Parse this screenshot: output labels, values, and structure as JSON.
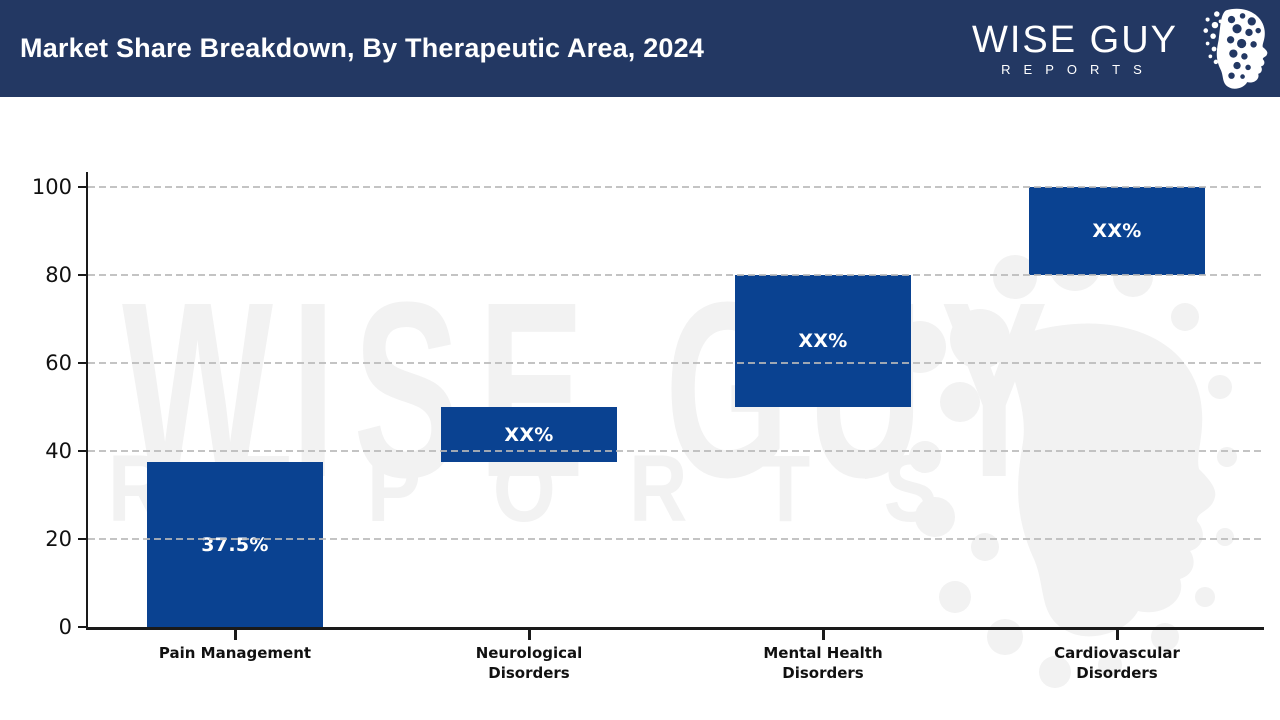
{
  "header": {
    "title": "Market Share Breakdown, By Therapeutic Area, 2024",
    "background_color": "#233863",
    "logo": {
      "line1": "WISE GUY",
      "line2": "REPORTS"
    }
  },
  "watermark": {
    "line1": "WISE GUY",
    "line2": "R E P O R T S"
  },
  "chart_data": {
    "type": "bar",
    "subtype": "floating-waterfall",
    "title": "Market Share Breakdown, By Therapeutic Area, 2024",
    "categories": [
      "Pain Management",
      "Neurological\nDisorders",
      "Mental Health\nDisorders",
      "Cardiovascular\nDisorders"
    ],
    "segments": [
      {
        "category": "Pain Management",
        "start": 0,
        "end": 37.5,
        "label": "37.5%"
      },
      {
        "category": "Neurological Disorders",
        "start": 37.5,
        "end": 50,
        "label": "XX%"
      },
      {
        "category": "Mental Health Disorders",
        "start": 50,
        "end": 80,
        "label": "XX%"
      },
      {
        "category": "Cardiovascular Disorders",
        "start": 80,
        "end": 100,
        "label": "XX%"
      }
    ],
    "xlabel": "",
    "ylabel": "",
    "ylim": [
      0,
      100
    ],
    "yticks": [
      0,
      20,
      40,
      60,
      80,
      100
    ],
    "grid": "horizontal-dashed",
    "legend": "none",
    "bar_color": "#0a4291",
    "bar_label_color": "#ffffff",
    "axis_color": "#1a1a1a",
    "gridline_color": "#bdbdbd"
  }
}
